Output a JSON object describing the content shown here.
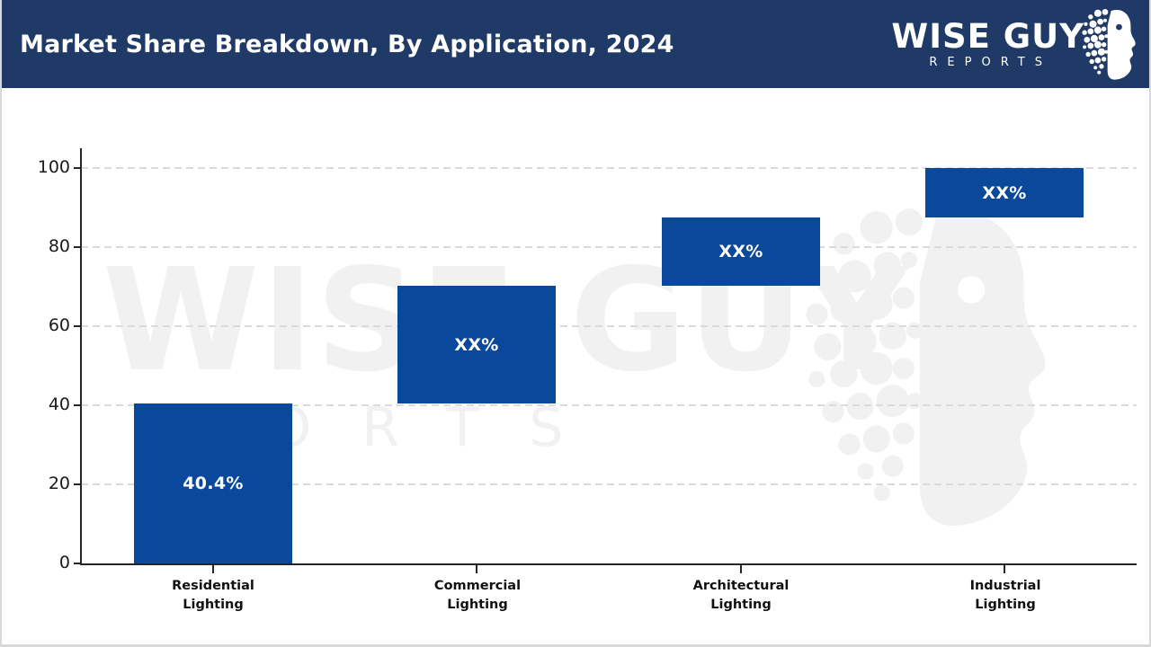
{
  "header": {
    "title": "Market Share Breakdown, By Application, 2024",
    "logo": {
      "line1": "WISE GUY",
      "line2": "REPORTS"
    }
  },
  "watermark": {
    "line1": "WISE GUY",
    "line2": "PORTS"
  },
  "colors": {
    "header_bg": "#1f3a67",
    "bar": "#0a489c",
    "grid": "#dbdbdb",
    "axis": "#262626",
    "watermark": "#f1f1f1"
  },
  "chart_data": {
    "type": "bar",
    "subtype": "waterfall",
    "title": "Market Share Breakdown, By Application, 2024",
    "xlabel": "",
    "ylabel": "",
    "ylim": [
      0,
      100
    ],
    "yticks": [
      0,
      20,
      40,
      60,
      80,
      100
    ],
    "grid": "horizontal-dashed",
    "legend": "none",
    "bar_color": "#0a489c",
    "categories": [
      "Residential Lighting",
      "Commercial Lighting",
      "Architectural Lighting",
      "Industrial Lighting"
    ],
    "category_lines": [
      [
        "Residential",
        "Lighting"
      ],
      [
        "Commercial",
        "Lighting"
      ],
      [
        "Architectural",
        "Lighting"
      ],
      [
        "Industrial",
        "Lighting"
      ]
    ],
    "series": [
      {
        "name": "Residential Lighting",
        "start": 0,
        "end": 40.4,
        "value": 40.4,
        "label": "40.4%"
      },
      {
        "name": "Commercial Lighting",
        "start": 40.4,
        "end": 70.2,
        "value": 29.8,
        "label": "XX%"
      },
      {
        "name": "Architectural Lighting",
        "start": 70.2,
        "end": 87.5,
        "value": 17.3,
        "label": "XX%"
      },
      {
        "name": "Industrial Lighting",
        "start": 87.5,
        "end": 100,
        "value": 12.5,
        "label": "XX%"
      }
    ]
  }
}
